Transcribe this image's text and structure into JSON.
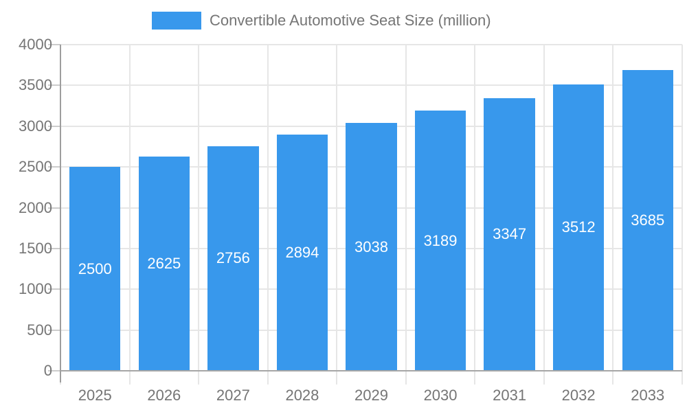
{
  "legend": {
    "label": "Convertible Automotive Seat Size (million)"
  },
  "chart_data": {
    "type": "bar",
    "title": "Convertible Automotive Seat Size (million)",
    "categories": [
      "2025",
      "2026",
      "2027",
      "2028",
      "2029",
      "2030",
      "2031",
      "2032",
      "2033"
    ],
    "values": [
      2500,
      2625,
      2756,
      2894,
      3038,
      3189,
      3347,
      3512,
      3685
    ],
    "series": [
      {
        "name": "Convertible Automotive Seat Size (million)",
        "values": [
          2500,
          2625,
          2756,
          2894,
          3038,
          3189,
          3347,
          3512,
          3685
        ]
      }
    ],
    "xlabel": "",
    "ylabel": "",
    "ylim": [
      0,
      4000
    ],
    "yticks": [
      0,
      500,
      1000,
      1500,
      2000,
      2500,
      3000,
      3500,
      4000
    ],
    "grid": true,
    "legend_position": "top",
    "bar_color": "#3898ec",
    "value_label_color": "#ffffff",
    "axis_text_color": "#757575",
    "gridline_color": "#e6e6e6",
    "axis_line_color": "#a6a6a6"
  }
}
